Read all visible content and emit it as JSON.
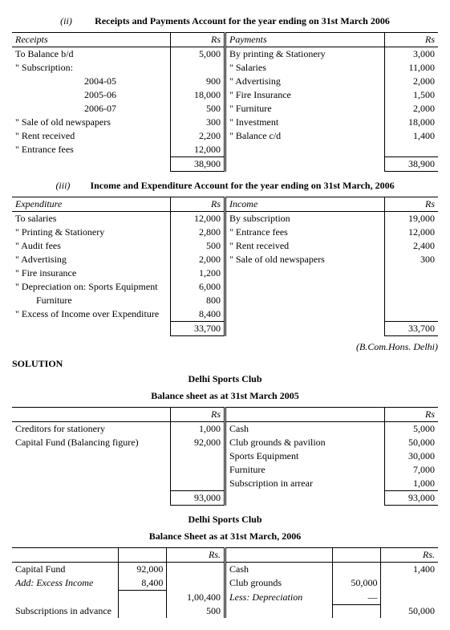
{
  "sec_ii": {
    "num": "(ii)",
    "title": "Receipts and Payments Account for the year ending on 31st March 2006",
    "left_head": "Receipts",
    "right_head": "Payments",
    "rs": "Rs",
    "left_rows": [
      {
        "label": "To Balance b/d",
        "amt": "5,000"
      },
      {
        "label": "\"   Subscription:",
        "amt": ""
      },
      {
        "label": "2004-05",
        "amt": "900",
        "indent": 2
      },
      {
        "label": "2005-06",
        "amt": "18,000",
        "indent": 2
      },
      {
        "label": "2006-07",
        "amt": "500",
        "indent": 2
      },
      {
        "label": "\"   Sale of old newspapers",
        "amt": "300"
      },
      {
        "label": "\"   Rent received",
        "amt": "2,200"
      },
      {
        "label": "\"   Entrance fees",
        "amt": "12,000"
      }
    ],
    "left_total": "38,900",
    "right_rows": [
      {
        "label": "By printing & Stationery",
        "amt": "3,000"
      },
      {
        "label": "\"   Salaries",
        "amt": "11,000"
      },
      {
        "label": "\"   Advertising",
        "amt": "2,000"
      },
      {
        "label": "\"   Fire Insurance",
        "amt": "1,500"
      },
      {
        "label": "\"   Furniture",
        "amt": "2,000"
      },
      {
        "label": "\"   Investment",
        "amt": "18,000"
      },
      {
        "label": "\"   Balance c/d",
        "amt": "1,400"
      }
    ],
    "right_total": "38,900"
  },
  "sec_iii": {
    "num": "(iii)",
    "title": "Income and Expenditure Account for the year ending on 31st March, 2006",
    "left_head": "Expenditure",
    "right_head": "Income",
    "rs": "Rs",
    "left_rows": [
      {
        "label": "To salaries",
        "amt": "12,000"
      },
      {
        "label": "\"   Printing & Stationery",
        "amt": "2,800"
      },
      {
        "label": "\"   Audit fees",
        "amt": "500"
      },
      {
        "label": "\"   Advertising",
        "amt": "2,000"
      },
      {
        "label": "\"   Fire insurance",
        "amt": "1,200"
      },
      {
        "label": "\"   Depreciation on: Sports Equipment",
        "amt": "6,000"
      },
      {
        "label": "Furniture",
        "amt": "800",
        "indent": 1
      },
      {
        "label": "\"   Excess of Income over Expenditure",
        "amt": "8,400"
      }
    ],
    "left_total": "33,700",
    "right_rows": [
      {
        "label": "By subscription",
        "amt": "19,000"
      },
      {
        "label": "\"   Entrance fees",
        "amt": "12,000"
      },
      {
        "label": "\"   Rent received",
        "amt": "2,400"
      },
      {
        "label": "\"   Sale of old newspapers",
        "amt": "300"
      }
    ],
    "right_total": "33,700"
  },
  "source": "(B.Com.Hons. Delhi)",
  "solution_label": "SOLUTION",
  "bs2005": {
    "org": "Delhi Sports Club",
    "title": "Balance sheet as at 31st March 2005",
    "rs": "Rs",
    "left_rows": [
      {
        "label": "Creditors for stationery",
        "amt": "1,000"
      },
      {
        "label": "Capital Fund (Balancing figure)",
        "amt": "92,000"
      }
    ],
    "left_total": "93,000",
    "right_rows": [
      {
        "label": "Cash",
        "amt": "5,000"
      },
      {
        "label": "Club grounds & pavilion",
        "amt": "50,000"
      },
      {
        "label": "Sports Equipment",
        "amt": "30,000"
      },
      {
        "label": "Furniture",
        "amt": "7,000"
      },
      {
        "label": "Subscription in arrear",
        "amt": "1,000"
      }
    ],
    "right_total": "93,000"
  },
  "bs2006": {
    "org": "Delhi Sports Club",
    "title": "Balance Sheet as at 31st March, 2006",
    "rs": "Rs.",
    "left": {
      "capital_fund": "Capital Fund",
      "capital_fund_amt": "92,000",
      "add_excess": "Add: Excess Income",
      "add_excess_amt": "8,400",
      "subtotal": "1,00,400",
      "subs_adv": "Subscriptions in advance",
      "subs_adv_amt": "500"
    },
    "right": {
      "cash": "Cash",
      "cash_amt": "1,400",
      "club_grounds": "Club grounds",
      "club_grounds_amt": "50,000",
      "less_dep": "Less: Depreciation",
      "less_dep_amt": "—",
      "subtotal": "50,000"
    }
  }
}
